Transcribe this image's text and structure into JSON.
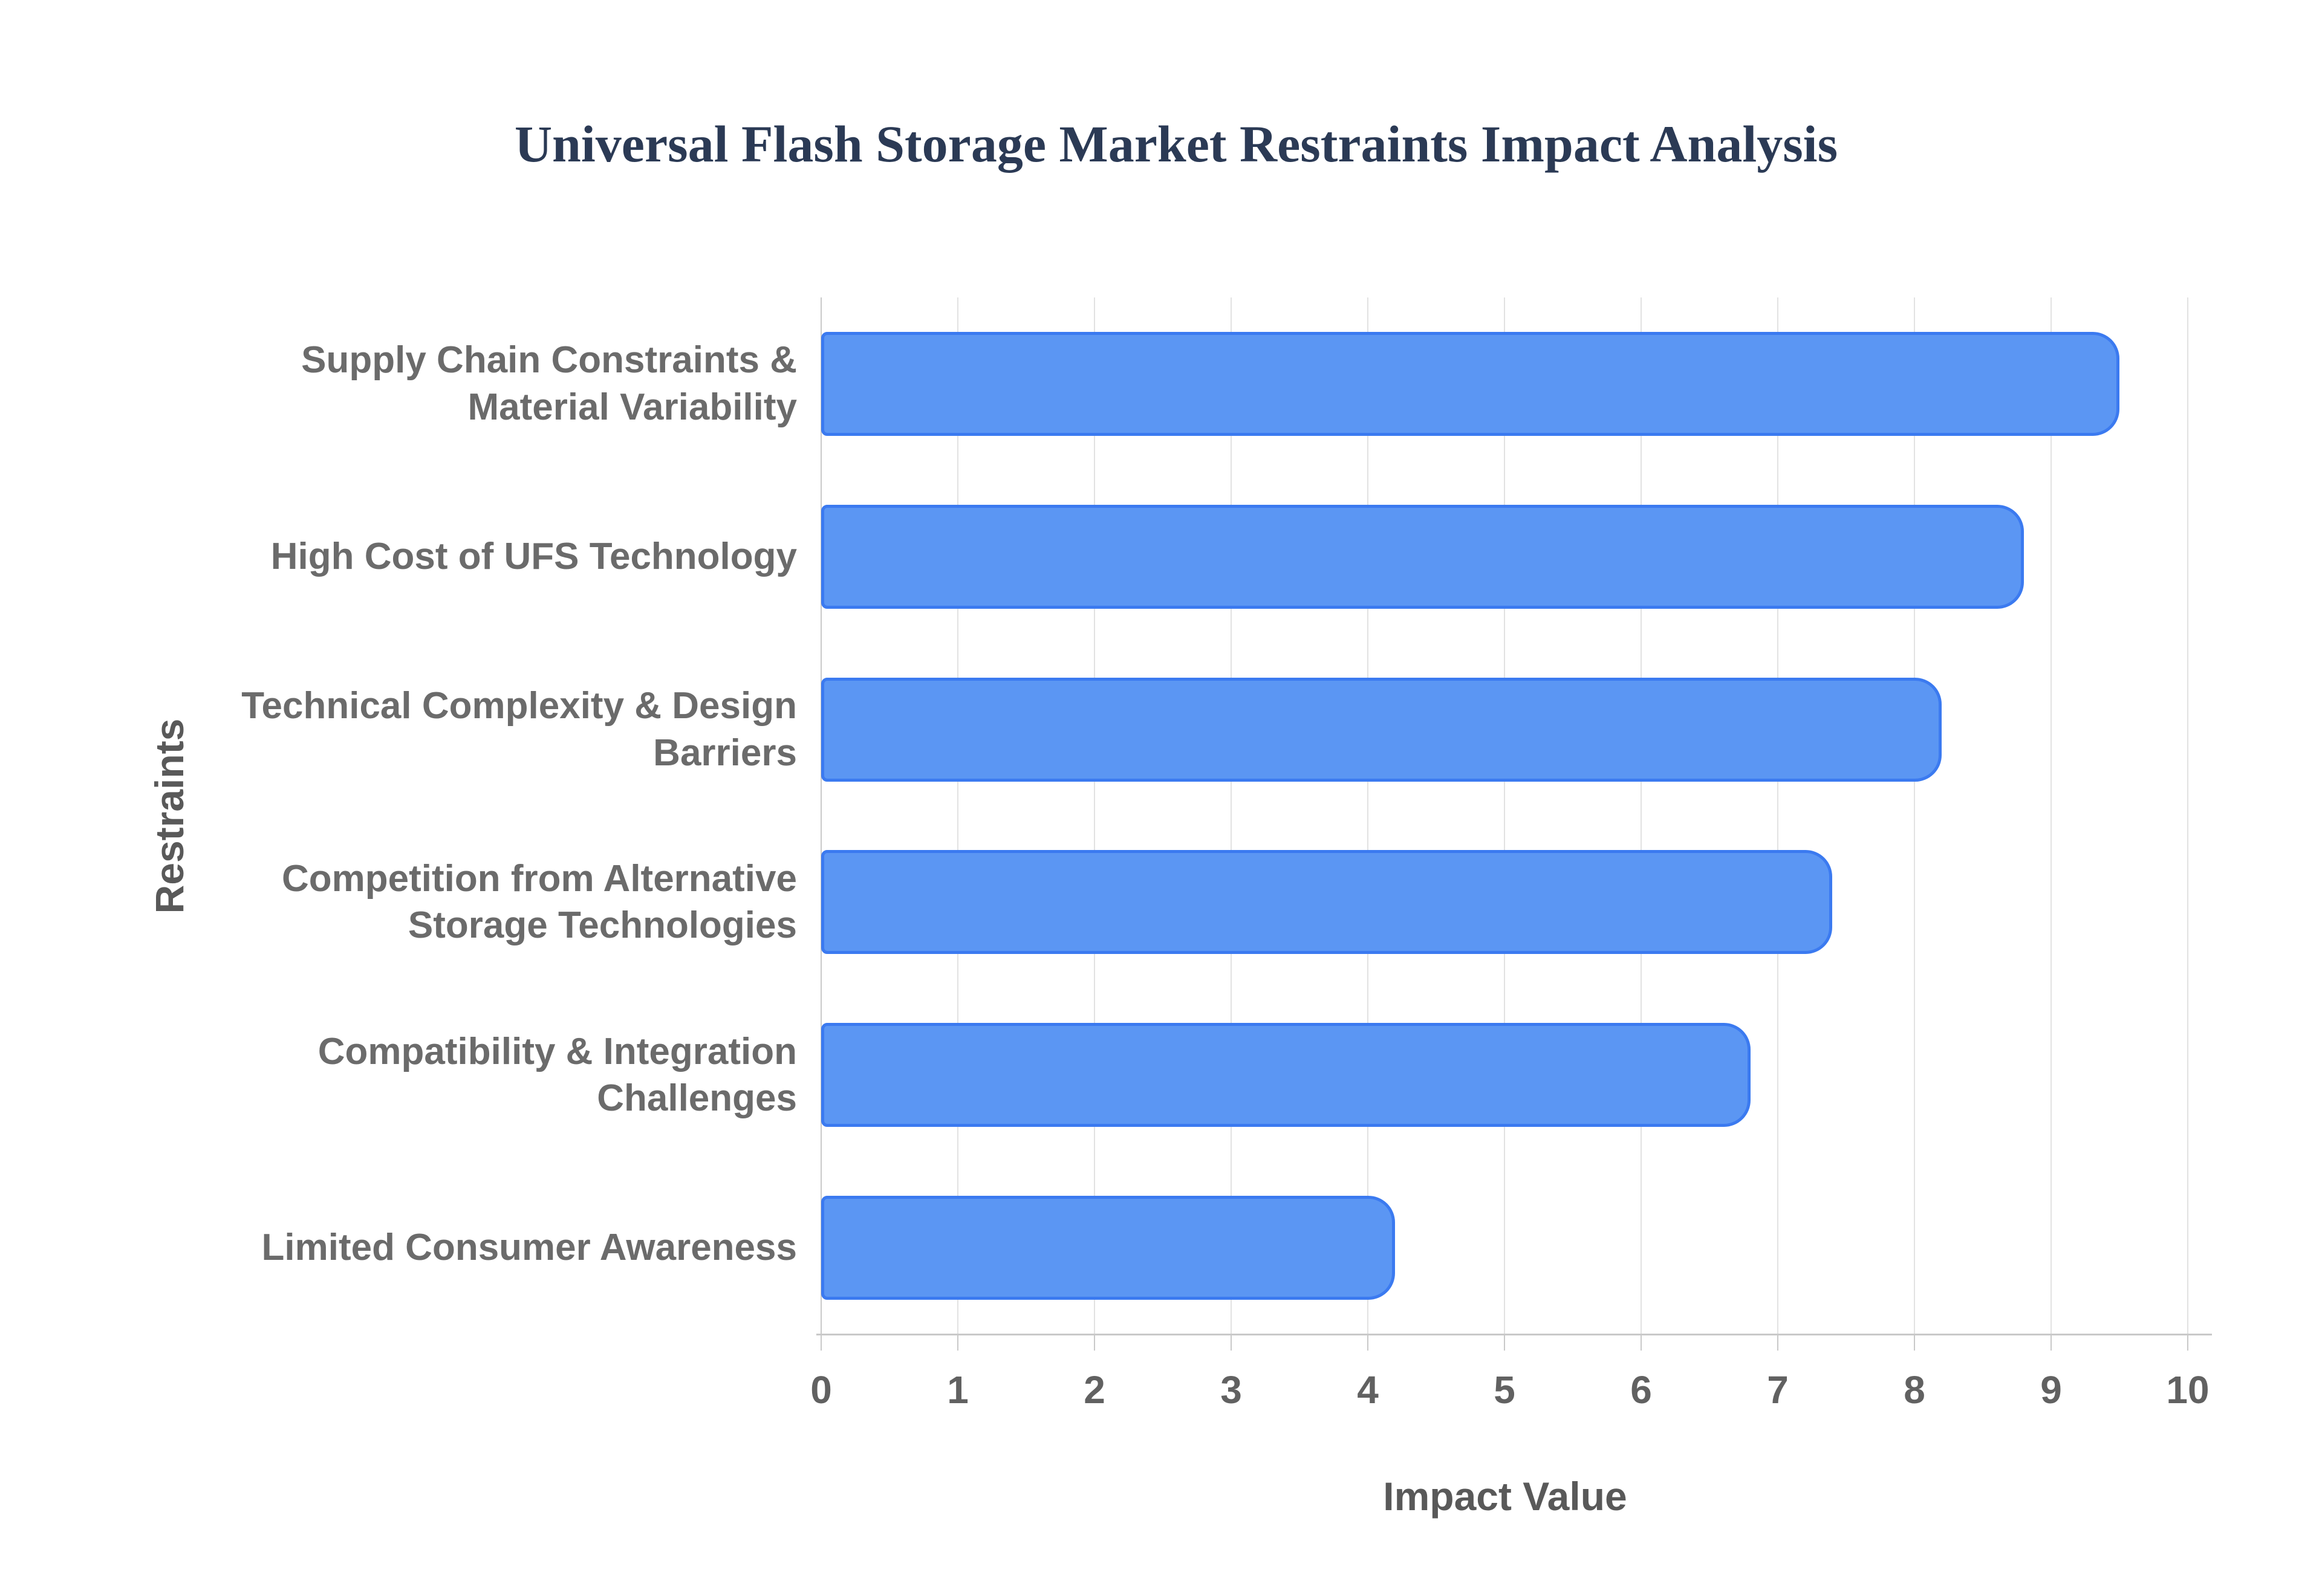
{
  "colors": {
    "background": "#ffffff",
    "title": "#2b3a55",
    "bar_fill": "#5b96f3",
    "bar_border": "#3b7af0",
    "gridline": "#e2e2e2",
    "axis_line": "#c9c9c9",
    "tick_label": "#616161",
    "category_label": "#6b6b6b",
    "axis_title": "#595959"
  },
  "chart_data": {
    "type": "bar",
    "orientation": "horizontal",
    "title": "Universal Flash Storage Market Restraints Impact Analysis",
    "categories": [
      "Supply Chain Constraints &\nMaterial Variability",
      "High Cost of UFS Technology",
      "Technical Complexity & Design\nBarriers",
      "Competition from Alternative\nStorage Technologies",
      "Compatibility & Integration\nChallenges",
      "Limited Consumer Awareness"
    ],
    "values": [
      9.5,
      8.8,
      8.2,
      7.4,
      6.8,
      4.2
    ],
    "xlabel": "Impact Value",
    "ylabel": "Restraints",
    "xlim": [
      0,
      10
    ],
    "xticks": [
      0,
      1,
      2,
      3,
      4,
      5,
      6,
      7,
      8,
      9,
      10
    ],
    "grid": "vertical",
    "legend": "none"
  }
}
